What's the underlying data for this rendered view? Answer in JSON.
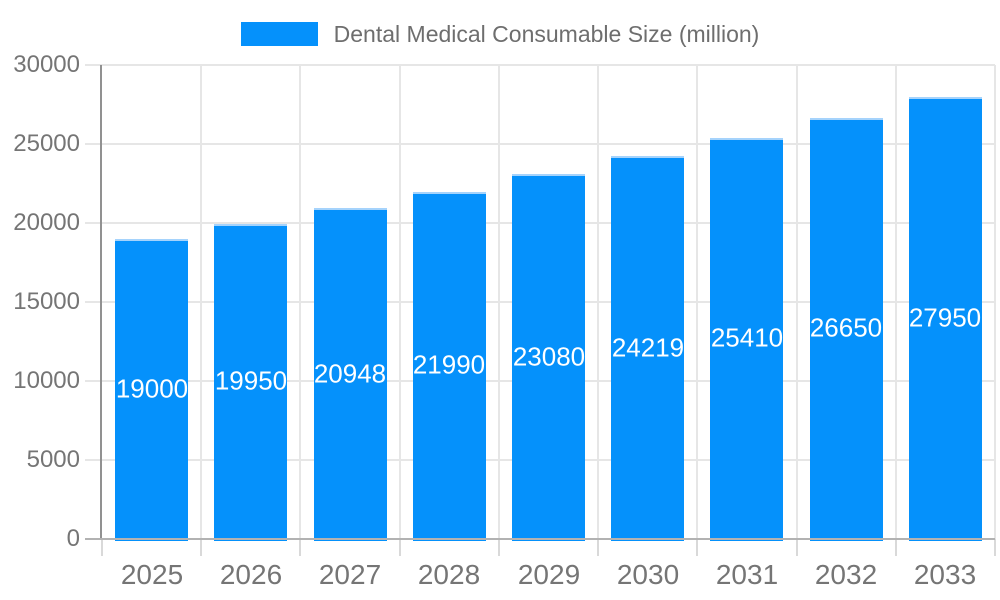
{
  "chart_data": {
    "type": "bar",
    "title": "Dental Medical Consumable Size (million)",
    "categories": [
      "2025",
      "2026",
      "2027",
      "2028",
      "2029",
      "2030",
      "2031",
      "2032",
      "2033"
    ],
    "series": [
      {
        "name": "Dental Medical Consumable Size (million)",
        "values": [
          19000,
          19950,
          20948,
          21990,
          23080,
          24219,
          25410,
          26650,
          27950
        ]
      }
    ],
    "bar_value_labels": [
      "19000",
      "19950",
      "20948",
      "21990",
      "23080",
      "24219",
      "25410",
      "26650",
      "27950"
    ],
    "xlabel": "",
    "ylabel": "",
    "ylim": [
      0,
      30000
    ],
    "yticks": [
      0,
      5000,
      10000,
      15000,
      20000,
      25000,
      30000
    ],
    "ytick_labels": [
      "0",
      "5000",
      "10000",
      "15000",
      "20000",
      "25000",
      "30000"
    ],
    "grid": true,
    "legend_position": "top-center",
    "colors": {
      "bar": "#0591fb",
      "bar_top_edge": "#a5d3fc",
      "bar_value_text": "#ffffff",
      "axis_text": "#757575",
      "legend_text": "#6e6e6e",
      "grid_line": "#e6e6e6",
      "x_axis_line": "#b2b2b2",
      "y_axis_line": "#919191",
      "tick_mark": "#d9d9d9",
      "background": "#ffffff"
    }
  }
}
